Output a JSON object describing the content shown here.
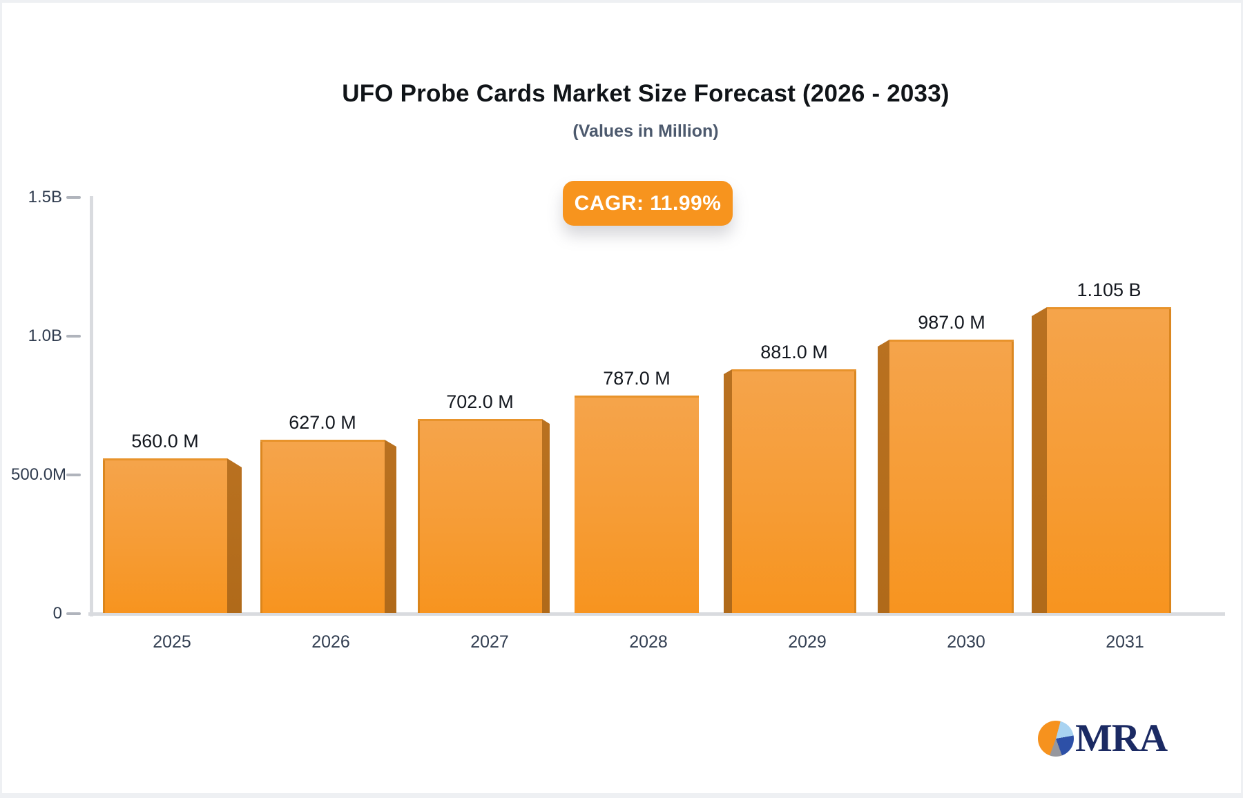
{
  "header": {
    "title": "UFO Probe Cards Market Size Forecast (2026 - 2033)",
    "subtitle": "(Values in Million)"
  },
  "badge": {
    "label": "CAGR: 11.99%",
    "background": "#f7941e",
    "text_color": "#ffffff"
  },
  "chart_data": {
    "type": "bar",
    "title": "UFO Probe Cards Market Size Forecast (2026 - 2033)",
    "subtitle": "(Values in Million)",
    "categories": [
      "2025",
      "2026",
      "2027",
      "2028",
      "2029",
      "2030",
      "2031"
    ],
    "values": [
      560.0,
      627.0,
      702.0,
      787.0,
      881.0,
      987.0,
      1105.0
    ],
    "unit": "Million",
    "value_labels": [
      "560.0 M",
      "627.0 M",
      "702.0 M",
      "787.0 M",
      "881.0 M",
      "987.0 M",
      "1.105 B"
    ],
    "xlabel": "",
    "ylabel": "",
    "ylim": [
      0,
      1500
    ],
    "y_tick_values": [
      0,
      500,
      1000,
      1500
    ],
    "y_tick_labels": [
      "0",
      "500.0M",
      "1.0B",
      "1.5B"
    ],
    "grid": false,
    "legend": false,
    "bar_color_top": "#f5a44b",
    "bar_color_bottom": "#f7941f",
    "bar_side_color": "#b4701e",
    "style": "3d-extruded-center-perspective"
  },
  "logo": {
    "text": "MRA",
    "pie_colors": [
      "#f6921e",
      "#a9d3f1",
      "#2d50a7",
      "#97989e"
    ]
  }
}
